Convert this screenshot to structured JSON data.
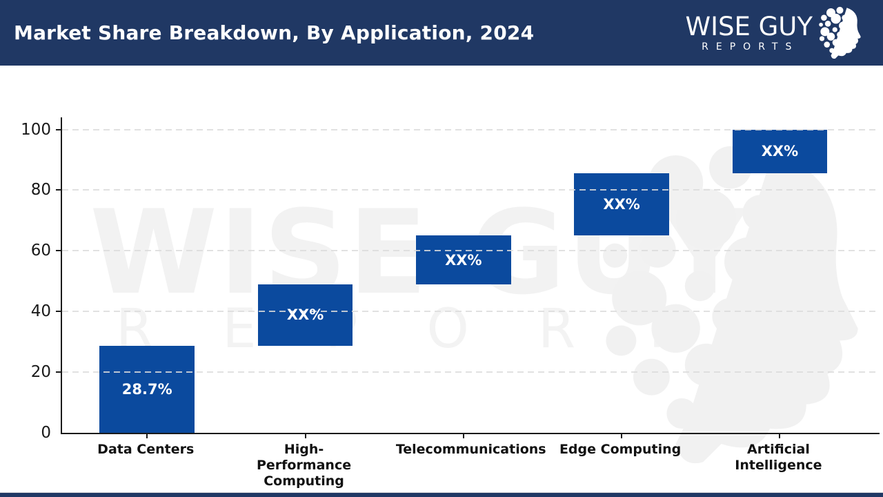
{
  "header": {
    "title": "Market Share Breakdown, By Application, 2024",
    "logo": {
      "line1": "WISE GUY",
      "line2": "REPORTS"
    }
  },
  "watermark": {
    "line1": "WISE GUY",
    "line2": "REPORTS"
  },
  "colors": {
    "header_bg": "#203864",
    "bar": "#0b4a9e",
    "grid": "#dcdcdc",
    "axis": "#1a1a1a",
    "bar_label_text": "#ffffff",
    "watermark": "#f2f2f2"
  },
  "chart_data": {
    "type": "bar",
    "subtype": "waterfall",
    "title": "Market Share Breakdown, By Application, 2024",
    "categories": [
      "Data Centers",
      "High-Performance Computing",
      "Telecommunications",
      "Edge Computing",
      "Artificial Intelligence"
    ],
    "segments": [
      {
        "category": "Data Centers",
        "label": "28.7%",
        "start": 0,
        "end": 28.7
      },
      {
        "category": "High-Performance Computing",
        "label": "XX%",
        "start": 28.7,
        "end": 49.0
      },
      {
        "category": "Telecommunications",
        "label": "XX%",
        "start": 49.0,
        "end": 65.0
      },
      {
        "category": "Edge Computing",
        "label": "XX%",
        "start": 65.0,
        "end": 85.5
      },
      {
        "category": "Artificial Intelligence",
        "label": "XX%",
        "start": 85.5,
        "end": 100
      }
    ],
    "xlabel": "",
    "ylabel": "",
    "yticks": [
      0,
      20,
      40,
      60,
      80,
      100
    ],
    "ylim": [
      0,
      104
    ],
    "grid": "horizontal-dashed",
    "legend": "none"
  }
}
